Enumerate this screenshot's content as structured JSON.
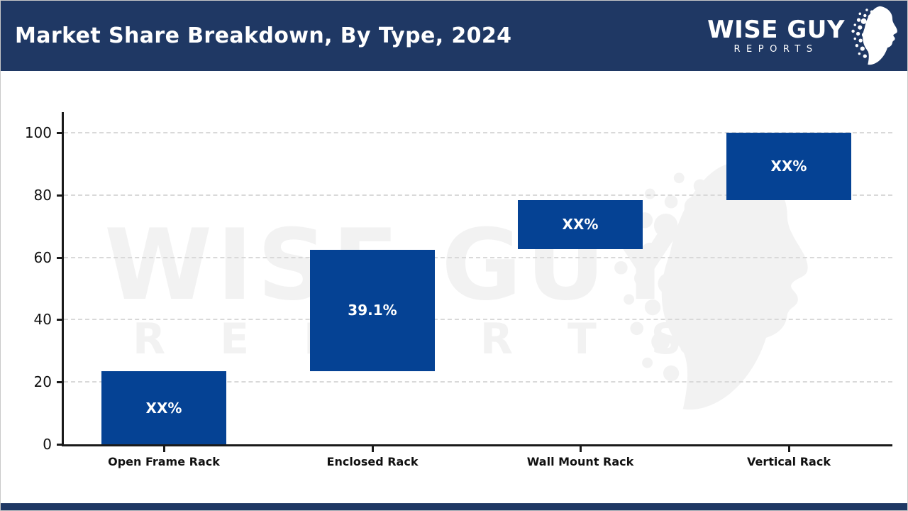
{
  "header": {
    "title": "Market Share Breakdown, By Type, 2024",
    "logo": {
      "line1": "WISE GUY",
      "line2": "REPORTS"
    }
  },
  "watermark": {
    "line1": "WISE GUY",
    "line2": "R E P O R T S"
  },
  "colors": {
    "header_bar": "#1F3864",
    "footer_bar": "#1F3864",
    "bar_fill": "#054294",
    "bar_label": "#ffffff",
    "gridline": "#d9d9d9",
    "axis": "#1a1a1a",
    "watermark": "#f2f2f2"
  },
  "chart_data": {
    "type": "bar",
    "subtype": "floating-segment waterfall of market share",
    "title": "Market Share Breakdown, By Type, 2024",
    "categories": [
      "Open Frame Rack",
      "Enclosed Rack",
      "Wall Mount Rack",
      "Vertical Rack"
    ],
    "segments": [
      {
        "category": "Open Frame Rack",
        "start": 0,
        "end": 23.4,
        "label": "XX%"
      },
      {
        "category": "Enclosed Rack",
        "start": 23.4,
        "end": 62.5,
        "label": "39.1%"
      },
      {
        "category": "Wall Mount Rack",
        "start": 62.6,
        "end": 78.4,
        "label": "XX%"
      },
      {
        "category": "Vertical Rack",
        "start": 78.4,
        "end": 100,
        "label": "XX%"
      }
    ],
    "ylim": [
      0,
      100
    ],
    "yticks": [
      0,
      20,
      40,
      60,
      80,
      100
    ],
    "xlabel": "",
    "ylabel": "",
    "grid": "horizontal-dashed",
    "legend": "none",
    "bar_color": "#054294",
    "bar_label_color": "#ffffff"
  }
}
